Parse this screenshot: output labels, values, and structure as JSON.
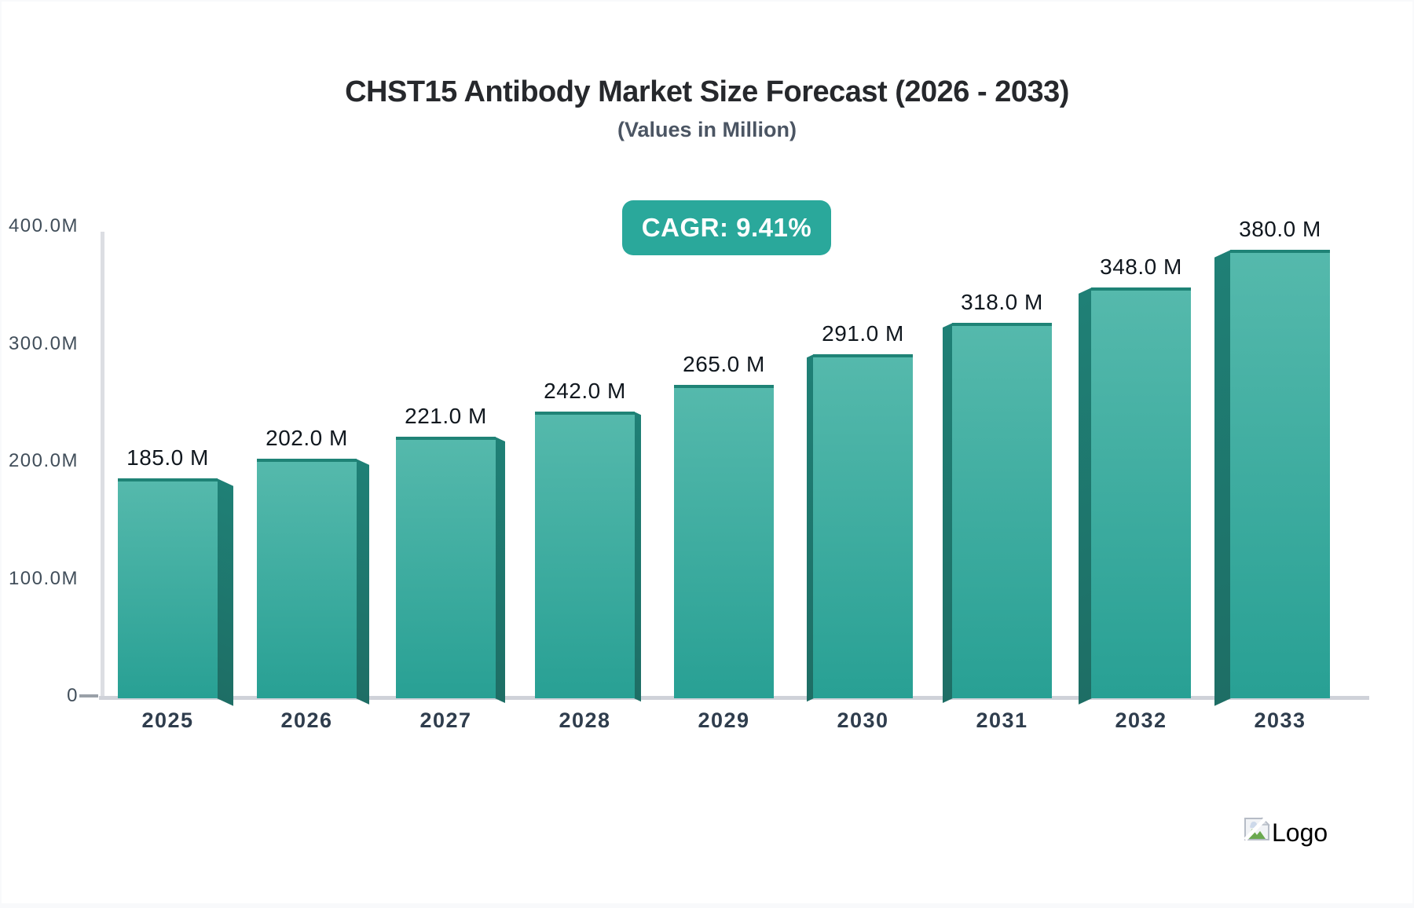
{
  "header": {
    "title": "CHST15 Antibody Market Size Forecast (2026 - 2033)",
    "subtitle": "(Values in Million)",
    "cagr_badge": {
      "label": "CAGR: 9.41%",
      "bg_color": "#2aa89b",
      "text_color": "#ffffff"
    }
  },
  "chart_data": {
    "type": "bar",
    "title": "CHST15 Antibody Market Size Forecast (2026 - 2033)",
    "subtitle": "(Values in Million)",
    "unit": "Million",
    "categories": [
      "2025",
      "2026",
      "2027",
      "2028",
      "2029",
      "2030",
      "2031",
      "2032",
      "2033"
    ],
    "values": [
      185,
      202,
      221,
      242,
      265,
      291,
      318,
      348,
      380
    ],
    "value_labels": [
      "185.0 M",
      "202.0 M",
      "221.0 M",
      "242.0 M",
      "265.0 M",
      "291.0 M",
      "318.0 M",
      "348.0 M",
      "380.0 M"
    ],
    "y_ticks": [
      {
        "value": 400,
        "label": "400.0M"
      },
      {
        "value": 300,
        "label": "300.0M"
      },
      {
        "value": 200,
        "label": "200.0M"
      },
      {
        "value": 100,
        "label": "100.0M"
      },
      {
        "value": 0,
        "label": "0"
      }
    ],
    "ylim": [
      0,
      400
    ],
    "xlabel": "",
    "ylabel": "",
    "grid": false,
    "legend": "none",
    "bar_style": {
      "effect": "3d-perspective",
      "face_top_color": "#55b9ac",
      "face_bottom_color": "#28a094",
      "edge_color": "#1f8376",
      "side_color": "#1e7a70"
    }
  },
  "footer": {
    "logo_alt": "Logo",
    "broken_image_icon": "broken-image-icon"
  }
}
